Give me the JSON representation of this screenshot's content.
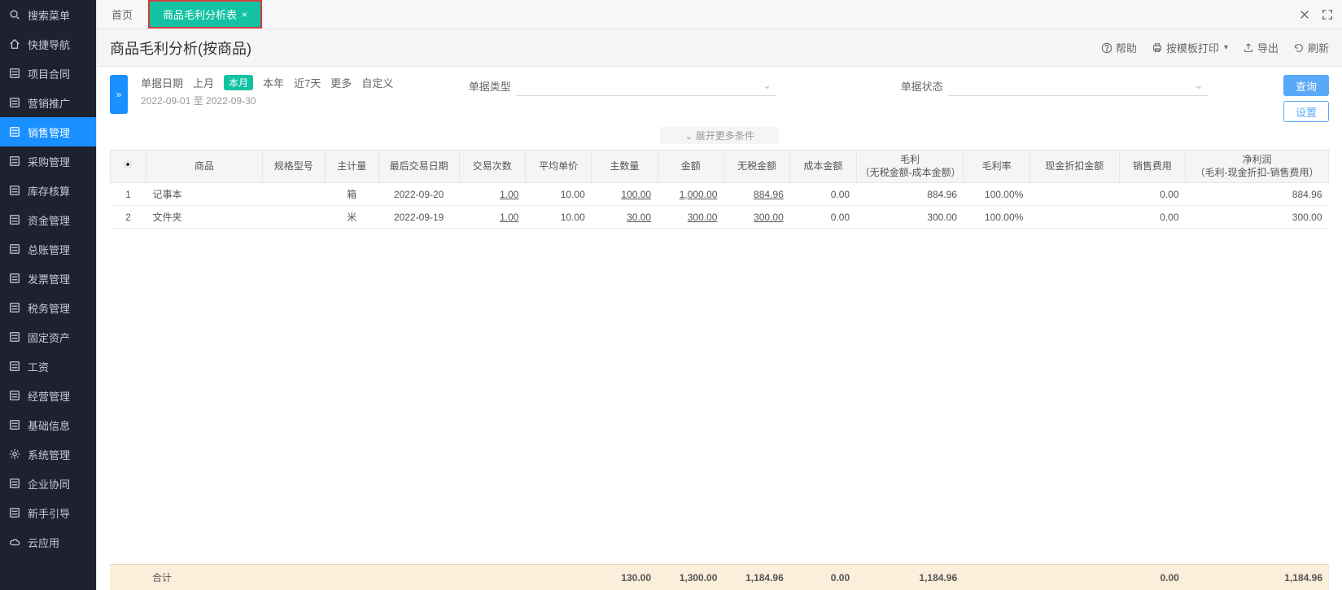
{
  "sidebar": {
    "items": [
      {
        "label": "搜索菜单",
        "icon": "search"
      },
      {
        "label": "快捷导航",
        "icon": "home"
      },
      {
        "label": "项目合同",
        "icon": "doc"
      },
      {
        "label": "营销推广",
        "icon": "gift"
      },
      {
        "label": "销售管理",
        "icon": "cart",
        "active": true
      },
      {
        "label": "采购管理",
        "icon": "box"
      },
      {
        "label": "库存核算",
        "icon": "stock"
      },
      {
        "label": "资金管理",
        "icon": "money"
      },
      {
        "label": "总账管理",
        "icon": "ledger"
      },
      {
        "label": "发票管理",
        "icon": "invoice"
      },
      {
        "label": "税务管理",
        "icon": "tax"
      },
      {
        "label": "固定资产",
        "icon": "asset"
      },
      {
        "label": "工资",
        "icon": "salary"
      },
      {
        "label": "经营管理",
        "icon": "biz"
      },
      {
        "label": "基础信息",
        "icon": "info"
      },
      {
        "label": "系统管理",
        "icon": "gear"
      },
      {
        "label": "企业协同",
        "icon": "team"
      },
      {
        "label": "新手引导",
        "icon": "guide"
      },
      {
        "label": "云应用",
        "icon": "cloud"
      }
    ]
  },
  "tabs": {
    "items": [
      {
        "label": "首页"
      },
      {
        "label": "商品毛利分析表",
        "active": true,
        "closable": true
      }
    ]
  },
  "page": {
    "title": "商品毛利分析(按商品)",
    "actions": {
      "help": "帮助",
      "print_template": "按模板打印",
      "export": "导出",
      "refresh": "刷新"
    }
  },
  "filter": {
    "date_label": "单据日期",
    "date_tabs": {
      "last_month": "上月",
      "this_month": "本月",
      "this_year": "本年",
      "last_7d": "近7天",
      "more": "更多",
      "custom": "自定义"
    },
    "date_range": "2022-09-01 至 2022-09-30",
    "type_label": "单据类型",
    "status_label": "单据状态",
    "query_btn": "查询",
    "settings_btn": "设置",
    "expand_more": "展开更多条件"
  },
  "table": {
    "columns": [
      " ",
      "商品",
      "规格型号",
      "主计量",
      "最后交易日期",
      "交易次数",
      "平均单价",
      "主数量",
      "金额",
      "无税金额",
      "成本金额",
      "毛利\n（无税金额-成本金额）",
      "毛利率",
      "现金折扣金额",
      "销售费用",
      "净利润\n（毛利-现金折扣-销售费用）"
    ],
    "rows": [
      {
        "idx": "1",
        "name": "记事本",
        "spec": "",
        "unit": "箱",
        "last_date": "2022-09-20",
        "tx_count": "1.00",
        "avg_price": "10.00",
        "qty": "100.00",
        "amount": "1,000.00",
        "amount_notax": "884.96",
        "cost": "0.00",
        "gross": "884.96",
        "margin": "100.00%",
        "cash_disc": "",
        "sales_fee": "0.00",
        "net": "884.96"
      },
      {
        "idx": "2",
        "name": "文件夹",
        "spec": "",
        "unit": "米",
        "last_date": "2022-09-19",
        "tx_count": "1.00",
        "avg_price": "10.00",
        "qty": "30.00",
        "amount": "300.00",
        "amount_notax": "300.00",
        "cost": "0.00",
        "gross": "300.00",
        "margin": "100.00%",
        "cash_disc": "",
        "sales_fee": "0.00",
        "net": "300.00"
      }
    ],
    "total": {
      "label": "合计",
      "qty": "130.00",
      "amount": "1,300.00",
      "amount_notax": "1,184.96",
      "cost": "0.00",
      "gross": "1,184.96",
      "sales_fee": "0.00",
      "net": "1,184.96"
    }
  }
}
